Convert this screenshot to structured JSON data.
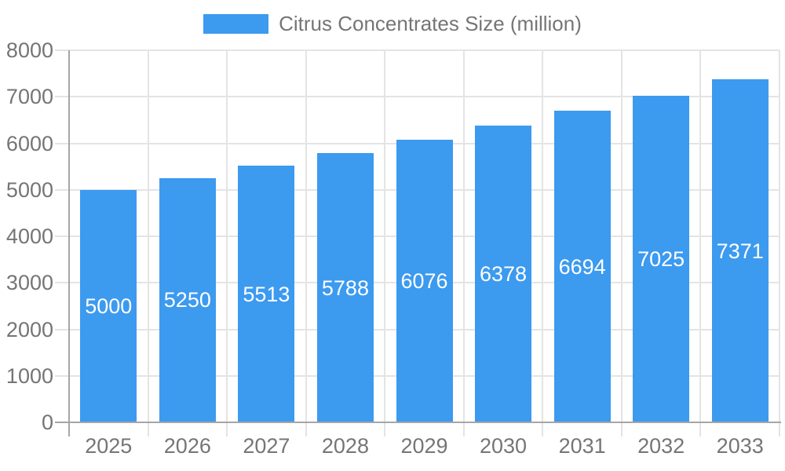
{
  "legend": {
    "label": "Citrus Concentrates Size (million)"
  },
  "colors": {
    "bar": "#3C9AEF",
    "grid": "#e4e4e4",
    "axis": "#a6a6a6",
    "tick_text": "#757575",
    "bar_label_text": "#ffffff",
    "background": "#ffffff"
  },
  "chart_data": {
    "type": "bar",
    "title": "Citrus Concentrates Size (million)",
    "categories": [
      "2025",
      "2026",
      "2027",
      "2028",
      "2029",
      "2030",
      "2031",
      "2032",
      "2033"
    ],
    "values": [
      5000,
      5250,
      5513,
      5788,
      6076,
      6378,
      6694,
      7025,
      7371
    ],
    "xlabel": "",
    "ylabel": "",
    "ylim": [
      0,
      8000
    ],
    "ytick_step": 1000,
    "grid": true,
    "legend_position": "top",
    "value_labels": "inside-center"
  }
}
